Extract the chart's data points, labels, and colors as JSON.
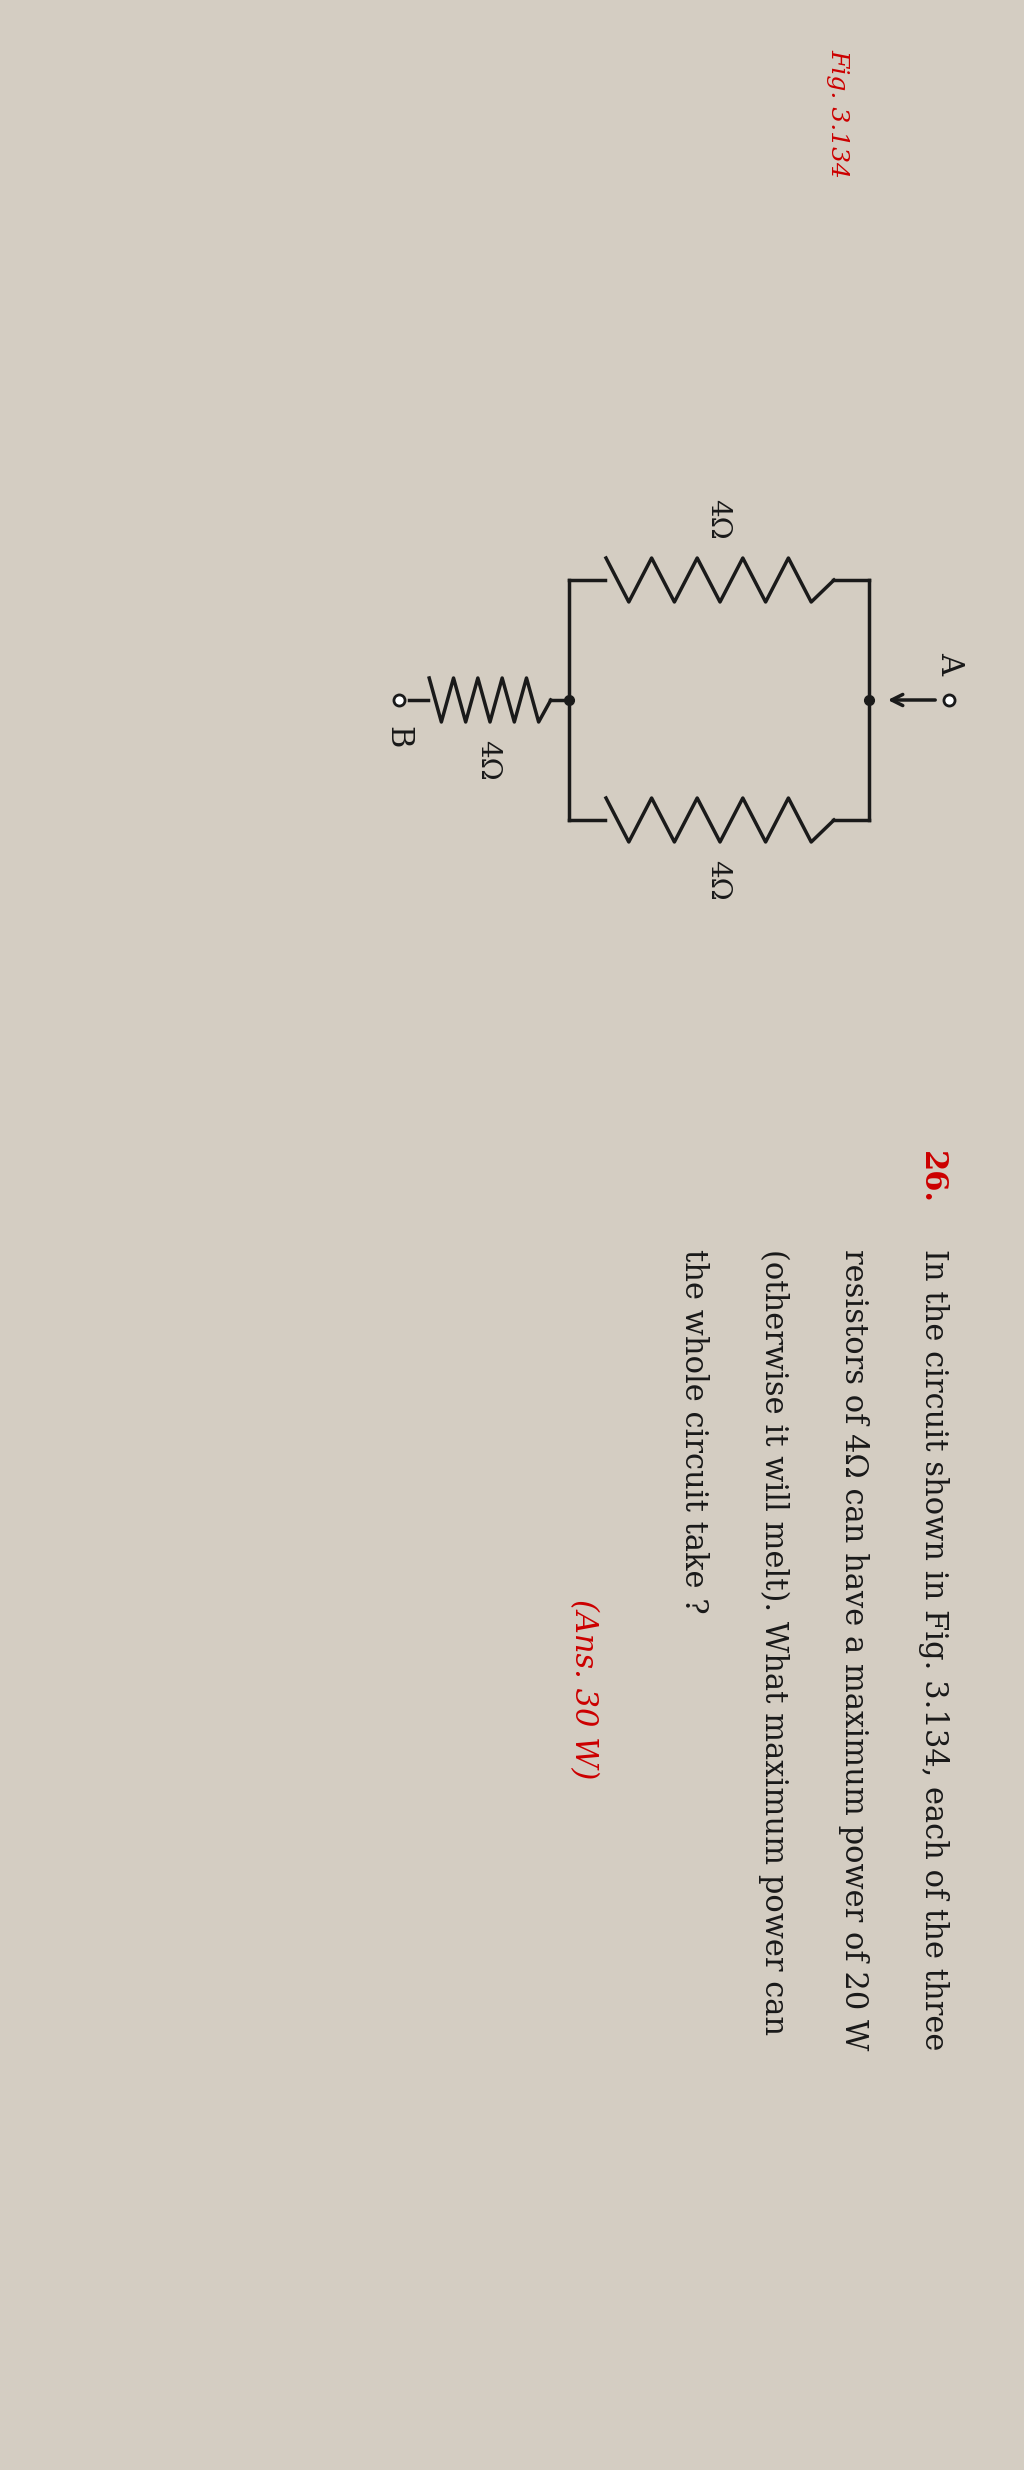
{
  "title_number": "26.",
  "title_text": "In the circuit shown in Fig. 3.134, each of the three",
  "line2": "resistors of 4Ω can have a maximum power of 20 W",
  "line3": "(otherwise it will melt). What maximum power can",
  "line4": "the whole circuit take ?",
  "ans_text": "(Ans. 30 W)",
  "fig_label": "Fig. 3.134",
  "ans_color": "#cc0000",
  "fig_label_color": "#cc0000",
  "bg_color": "#d4cdc2",
  "text_color": "#1a1a1a",
  "resistor_label": "4Ω",
  "node_A": "A",
  "node_B": "B",
  "title_number_color": "#cc0000"
}
